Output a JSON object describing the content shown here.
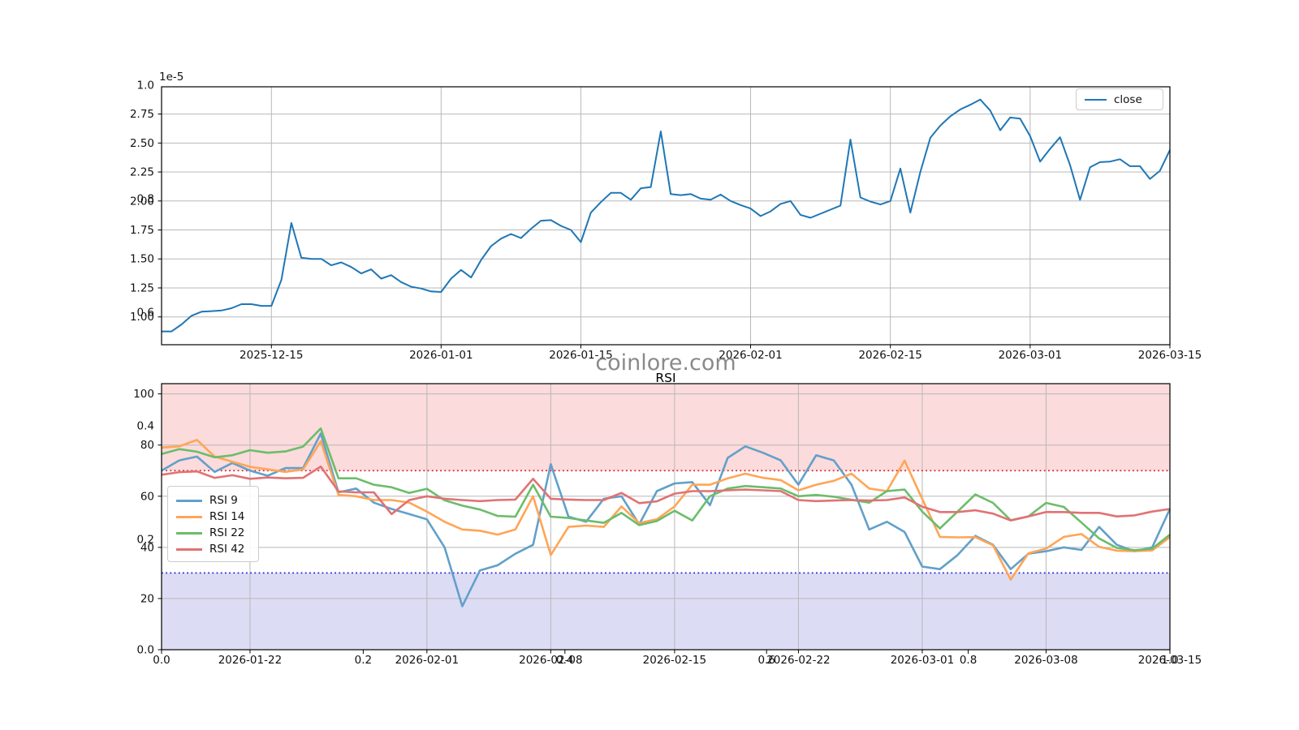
{
  "watermark": "coinlore.com",
  "hidden_axis": {
    "x_tick_labels": [
      "0.0",
      "0.2",
      "0.4",
      "0.6",
      "0.8",
      "1.0"
    ],
    "y_tick_labels": [
      "0.2",
      "0.4",
      "0.6",
      "0.8",
      "1.0"
    ]
  },
  "colors": {
    "close": "#1f77b4",
    "rsi9": "#62A0CA",
    "rsi14": "#FFA556",
    "rsi22": "#6BBD6B",
    "rsi42": "#E17273",
    "grid": "#b8b8b8",
    "spine": "#000000",
    "overbought_band": "#fbdbdb",
    "oversold_band": "#dddcf5",
    "overbought_line": "#dc1f2e",
    "oversold_line": "#2323cc",
    "watermark": "#8a8a8a"
  },
  "chart_data": [
    {
      "type": "line",
      "panel": "price",
      "title": "",
      "xlabel": "",
      "ylabel": "",
      "y_offset_label": "1e-5",
      "x_start": "2025-12-04",
      "x_step_days": 1,
      "x_tick_labels": [
        "2025-12-15",
        "2026-01-01",
        "2026-01-15",
        "2026-02-01",
        "2026-02-15",
        "2026-03-01",
        "2026-03-15"
      ],
      "x_tick_index": [
        11,
        28,
        42,
        59,
        73,
        87,
        101
      ],
      "y_tick_values": [
        1.0,
        1.25,
        1.5,
        1.75,
        2.0,
        2.25,
        2.5,
        2.75
      ],
      "y_tick_labels": [
        "1.00",
        "1.25",
        "1.50",
        "1.75",
        "2.00",
        "2.25",
        "2.50",
        "2.75"
      ],
      "ylim": [
        0.76,
        2.985
      ],
      "grid": true,
      "legend": [
        "close"
      ],
      "legend_position": "upper right",
      "series": [
        {
          "name": "close",
          "color": "#1f77b4",
          "values": [
            0.875,
            0.875,
            0.935,
            1.01,
            1.045,
            1.05,
            1.055,
            1.075,
            1.11,
            1.11,
            1.095,
            1.095,
            1.32,
            1.81,
            1.51,
            1.5,
            1.5,
            1.445,
            1.47,
            1.43,
            1.375,
            1.41,
            1.33,
            1.36,
            1.3,
            1.26,
            1.245,
            1.22,
            1.215,
            1.33,
            1.405,
            1.34,
            1.49,
            1.61,
            1.675,
            1.715,
            1.68,
            1.76,
            1.83,
            1.835,
            1.785,
            1.75,
            1.645,
            1.9,
            1.99,
            2.07,
            2.07,
            2.01,
            2.11,
            2.12,
            2.6,
            2.06,
            2.05,
            2.06,
            2.02,
            2.01,
            2.055,
            2.0,
            1.965,
            1.935,
            1.87,
            1.91,
            1.975,
            2.0,
            1.88,
            1.855,
            1.89,
            1.925,
            1.96,
            2.53,
            2.03,
            1.995,
            1.97,
            2.0,
            2.28,
            1.9,
            2.25,
            2.545,
            2.65,
            2.73,
            2.79,
            2.83,
            2.875,
            2.78,
            2.61,
            2.72,
            2.71,
            2.56,
            2.34,
            2.45,
            2.55,
            2.31,
            2.01,
            2.29,
            2.335,
            2.34,
            2.36,
            2.3,
            2.3,
            2.19,
            2.26,
            2.44
          ]
        }
      ]
    },
    {
      "type": "line",
      "panel": "rsi",
      "title": "RSI",
      "x_start": "2026-01-17",
      "x_step_days": 1,
      "x_tick_labels": [
        "2026-01-22",
        "2026-02-01",
        "2026-02-08",
        "2026-02-15",
        "2026-02-22",
        "2026-03-01",
        "2026-03-08",
        "2026-03-15"
      ],
      "x_tick_index": [
        5,
        15,
        22,
        29,
        36,
        43,
        50,
        57
      ],
      "y_tick_values": [
        0,
        20,
        40,
        60,
        80,
        100
      ],
      "y_tick_labels": [
        "0.0",
        "20",
        "40",
        "60",
        "80",
        "100"
      ],
      "ylim": [
        0,
        104
      ],
      "grid": true,
      "overbought_level": 70,
      "oversold_level": 30,
      "bands": [
        {
          "name": "overbought",
          "from": 70,
          "to": 104,
          "color": "#fbdbdb"
        },
        {
          "name": "oversold",
          "from": 0,
          "to": 30,
          "color": "#dddcf5"
        }
      ],
      "legend_position": "center left",
      "series": [
        {
          "name": "RSI 9",
          "color": "#62A0CA",
          "values": [
            70,
            74,
            75.5,
            69.5,
            73,
            70,
            68,
            71,
            71,
            84.5,
            61.5,
            63,
            57.5,
            55,
            53,
            51,
            40,
            17,
            31,
            33,
            37.5,
            41,
            72.5,
            52,
            50,
            59,
            60,
            49,
            62,
            65,
            65.5,
            56.5,
            75,
            79.5,
            77,
            74,
            64.5,
            76,
            74,
            64.5,
            47,
            50,
            46,
            32.5,
            31.5,
            37,
            44.5,
            41,
            31.5,
            37.5,
            38.5,
            40,
            39,
            48,
            41,
            38.5,
            40,
            55
          ]
        },
        {
          "name": "RSI 14",
          "color": "#FFA556",
          "values": [
            79,
            79.5,
            82,
            75.5,
            73.5,
            71.5,
            70.5,
            69.5,
            70.5,
            81.5,
            60.5,
            60,
            58.5,
            58.5,
            57.5,
            54,
            50,
            47,
            46.5,
            45,
            47,
            60,
            37,
            48,
            48.5,
            48,
            56,
            49.5,
            51,
            56,
            64.5,
            64.5,
            67,
            68.8,
            67.2,
            66.3,
            62.3,
            64.5,
            66,
            68.8,
            63,
            62,
            73.9,
            59,
            44.1,
            43.9,
            44,
            40.8,
            27.4,
            37.7,
            39.5,
            44.1,
            45.2,
            40.2,
            38.7,
            38.5,
            38.8,
            44
          ]
        },
        {
          "name": "RSI 22",
          "color": "#6BBD6B",
          "values": [
            76.5,
            78.4,
            77.4,
            75.2,
            76,
            78,
            77,
            77.5,
            79.4,
            86.5,
            67,
            67,
            64.5,
            63.5,
            61.3,
            62.9,
            58.4,
            56.3,
            54.8,
            52.3,
            52,
            64.5,
            52,
            51.5,
            50.5,
            49.6,
            53.5,
            48.7,
            50.3,
            54.3,
            50.5,
            60,
            63,
            64,
            63.5,
            63,
            60,
            60.5,
            59.8,
            58.6,
            57.5,
            62,
            62.6,
            54,
            47.4,
            54,
            60.7,
            57.4,
            50.6,
            52.1,
            57.4,
            55.8,
            49.7,
            43.5,
            39.8,
            38.9,
            39.5,
            45
          ]
        },
        {
          "name": "RSI 42",
          "color": "#E17273",
          "values": [
            68.4,
            69.4,
            69.7,
            67.2,
            68.2,
            66.8,
            67.3,
            67,
            67.2,
            71.6,
            61.9,
            61.5,
            61.5,
            53,
            58.5,
            60,
            59,
            58.5,
            58.1,
            58.5,
            58.7,
            66.8,
            59,
            58.7,
            58.5,
            58.5,
            61.3,
            57.3,
            58,
            61,
            62,
            62,
            62.3,
            62.6,
            62.3,
            62,
            58.5,
            58.1,
            58.3,
            58.5,
            58.3,
            58.5,
            59.5,
            55.9,
            53.8,
            53.8,
            54.5,
            53.2,
            50.5,
            52.1,
            53.8,
            53.8,
            53.5,
            53.5,
            52.1,
            52.5,
            54,
            55
          ]
        }
      ]
    }
  ]
}
